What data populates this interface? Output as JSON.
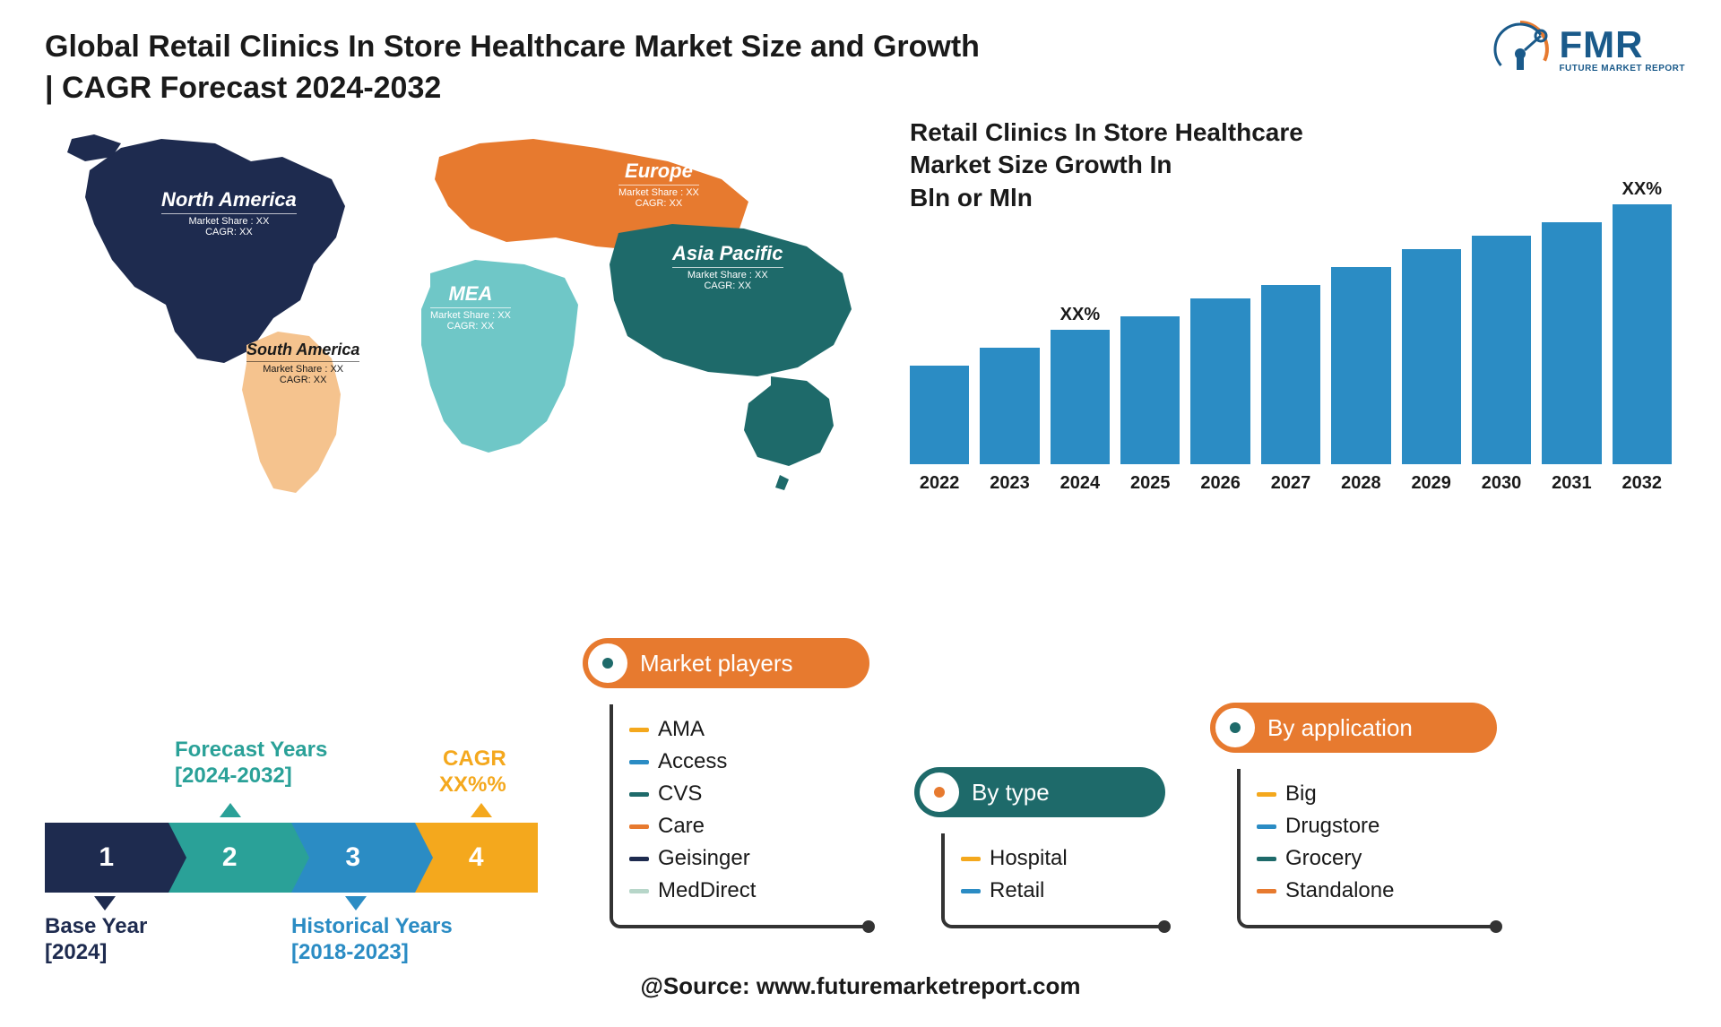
{
  "title": "Global Retail Clinics In Store Healthcare Market Size and Growth | CAGR Forecast 2024-2032",
  "logo": {
    "fmr": "FMR",
    "sub": "FUTURE MARKET REPORT"
  },
  "colors": {
    "navy": "#1e2b4f",
    "teal": "#2aa198",
    "blue": "#2b8cc4",
    "orange": "#e77a2f",
    "lightteal": "#6fc7c7",
    "darkteal": "#1e6a6a",
    "yellow": "#f4a81d",
    "bar": "#2b8cc4",
    "text": "#1a1a1a"
  },
  "map": {
    "regions": [
      {
        "name": "North America",
        "share": "Market Share : XX",
        "cagr": "CAGR: XX",
        "color_key": "navy"
      },
      {
        "name": "South America",
        "share": "Market Share : XX",
        "cagr": "CAGR: XX",
        "color_key": "orange"
      },
      {
        "name": "Europe",
        "share": "Market Share : XX",
        "cagr": "CAGR: XX",
        "color_key": "orange"
      },
      {
        "name": "MEA",
        "share": "Market Share : XX",
        "cagr": "CAGR: XX",
        "color_key": "lightteal"
      },
      {
        "name": "Asia Pacific",
        "share": "Market Share : XX",
        "cagr": "CAGR: XX",
        "color_key": "darkteal"
      }
    ]
  },
  "chart": {
    "title_l1": "Retail Clinics In Store Healthcare",
    "title_l2": "Market Size Growth In",
    "title_l3": "Bln or Mln",
    "bar_color": "#2b8cc4",
    "years": [
      "2022",
      "2023",
      "2024",
      "2025",
      "2026",
      "2027",
      "2028",
      "2029",
      "2030",
      "2031",
      "2032"
    ],
    "values": [
      110,
      130,
      150,
      165,
      185,
      200,
      220,
      240,
      255,
      270,
      290
    ],
    "ymax": 300,
    "annotations": {
      "2024": "XX%",
      "2032": "XX%"
    }
  },
  "timeline": {
    "base": {
      "num": "1",
      "title": "Base Year",
      "sub": "[2024]",
      "color": "#1e2b4f"
    },
    "forecast": {
      "num": "2",
      "title": "Forecast Years",
      "sub": "[2024-2032]",
      "color": "#2aa198"
    },
    "hist": {
      "num": "3",
      "title": "Historical Years",
      "sub": "[2018-2023]",
      "color": "#2b8cc4"
    },
    "cagr": {
      "num": "4",
      "title": "CAGR",
      "sub": "XX%%",
      "color": "#f4a81d"
    }
  },
  "pills": {
    "players": {
      "title": "Market players",
      "bg": "#e77a2f",
      "dot": "#1e6a6a",
      "items": [
        {
          "label": "AMA",
          "swatch": "#f4a81d"
        },
        {
          "label": "Access",
          "swatch": "#2b8cc4"
        },
        {
          "label": "CVS",
          "swatch": "#1e6a6a"
        },
        {
          "label": "Care",
          "swatch": "#e77a2f"
        },
        {
          "label": "Geisinger",
          "swatch": "#1e2b4f"
        },
        {
          "label": "MedDirect",
          "swatch": "#b7d6c9"
        }
      ]
    },
    "type": {
      "title": "By type",
      "bg": "#1e6a6a",
      "dot": "#e77a2f",
      "items": [
        {
          "label": "Hospital",
          "swatch": "#f4a81d"
        },
        {
          "label": "Retail",
          "swatch": "#2b8cc4"
        }
      ]
    },
    "app": {
      "title": "By application",
      "bg": "#e77a2f",
      "dot": "#1e6a6a",
      "items": [
        {
          "label": "Big",
          "swatch": "#f4a81d"
        },
        {
          "label": "Drugstore",
          "swatch": "#2b8cc4"
        },
        {
          "label": "Grocery",
          "swatch": "#1e6a6a"
        },
        {
          "label": "Standalone",
          "swatch": "#e77a2f"
        }
      ]
    }
  },
  "source": "@Source: www.futuremarketreport.com"
}
